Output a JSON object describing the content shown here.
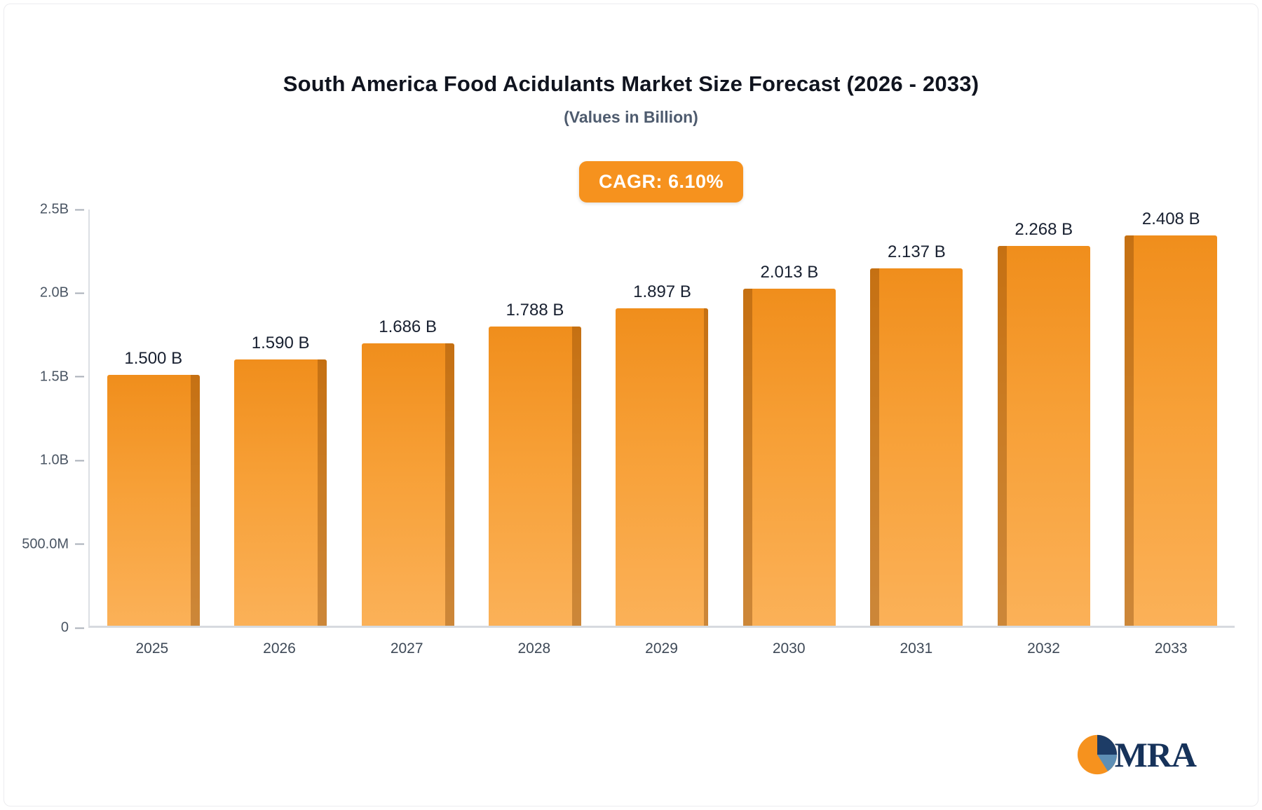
{
  "chart_data": {
    "type": "bar",
    "title": "South America Food Acidulants Market Size Forecast (2026 - 2033)",
    "subtitle": "(Values in Billion)",
    "cagr_label": "CAGR: 6.10%",
    "categories": [
      "2025",
      "2026",
      "2027",
      "2028",
      "2029",
      "2030",
      "2031",
      "2032",
      "2033"
    ],
    "values": [
      1.5,
      1.59,
      1.686,
      1.788,
      1.897,
      2.013,
      2.137,
      2.268,
      2.408
    ],
    "value_labels": [
      "1.500 B",
      "1.590 B",
      "1.686 B",
      "1.788 B",
      "1.897 B",
      "2.013 B",
      "2.137 B",
      "2.268 B",
      "2.408 B"
    ],
    "xlabel": "",
    "ylabel": "",
    "ylim": [
      0,
      2.5
    ],
    "y_ticks": [
      "2.5B",
      "2.0B",
      "1.5B",
      "1.0B",
      "500.0M",
      "0"
    ],
    "y_tick_values": [
      2.5,
      2.0,
      1.5,
      1.0,
      0.5,
      0
    ],
    "grid": false,
    "legend_position": "none",
    "colors": {
      "bar_gradient_top": "#f08e1c",
      "bar_gradient_bottom": "#fbb158",
      "bar_side_shade": "#a15b10",
      "badge_background": "#f6921e",
      "badge_text": "#ffffff",
      "title_text": "#10141f",
      "subtitle_text": "#4e5b6e",
      "axis_text": "#4a5563",
      "value_label_text": "#182030"
    }
  },
  "logo": {
    "text": "MRA",
    "icon": "pie-circle-icon"
  }
}
